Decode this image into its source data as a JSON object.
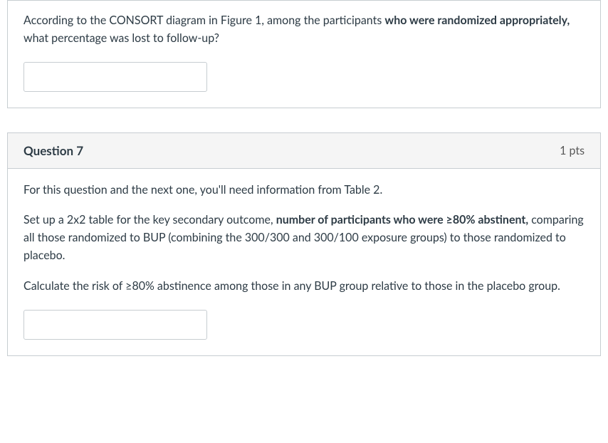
{
  "colors": {
    "border": "#c7cdd1",
    "header_bg": "#f5f5f5",
    "text": "#2d3b45",
    "muted": "#595959"
  },
  "question_top": {
    "prompt_html": "According to the CONSORT diagram in Figure 1, among the participants <b>who were randomized appropriately,</b> what percentage was lost to follow-up?",
    "prompt_prefix": "According to the CONSORT diagram in Figure 1, among the participants ",
    "prompt_bold": "who were randomized appropriately,",
    "prompt_suffix": " what percentage was lost to follow-up?",
    "input_value": ""
  },
  "question_7": {
    "title": "Question 7",
    "points": "1 pts",
    "para1": "For this question and the next one, you'll need information from Table 2.",
    "para2_prefix": "Set up a 2x2 table for the key secondary outcome, ",
    "para2_bold": "number of participants who were ≥80% abstinent,",
    "para2_suffix": " comparing all those randomized to BUP (combining the 300/300 and 300/100 exposure groups)  to those randomized to placebo.",
    "para3": "Calculate the risk of ≥80% abstinence among those in any BUP group relative to those in the placebo group.",
    "input_value": ""
  }
}
